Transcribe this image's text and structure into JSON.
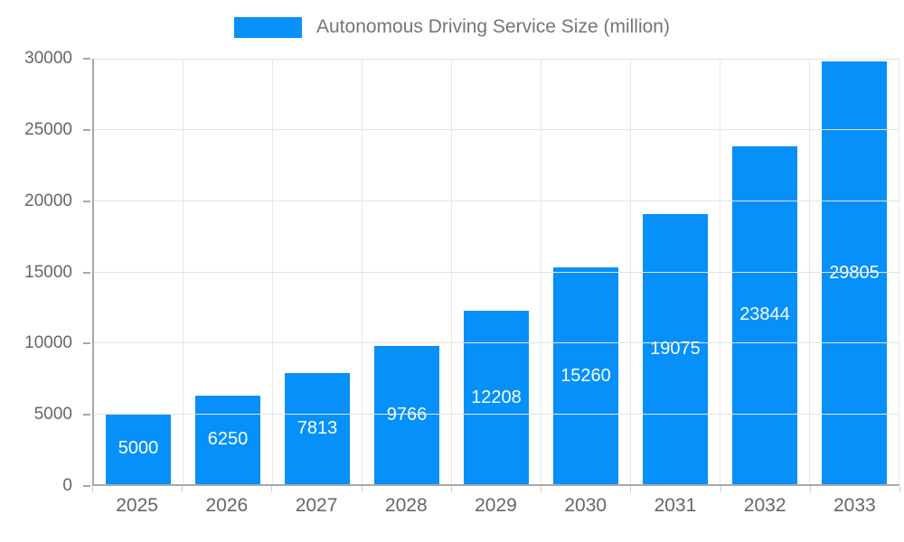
{
  "chart_data": {
    "type": "bar",
    "title": "Autonomous Driving Service Size (million)",
    "categories": [
      "2025",
      "2026",
      "2027",
      "2028",
      "2029",
      "2030",
      "2031",
      "2032",
      "2033"
    ],
    "values": [
      5000,
      6250,
      7813,
      9766,
      12208,
      15260,
      19075,
      23844,
      29805
    ],
    "xlabel": "",
    "ylabel": "",
    "ylim": [
      0,
      30000
    ],
    "yticks": [
      0,
      5000,
      10000,
      15000,
      20000,
      25000,
      30000
    ],
    "grid": true,
    "legend_position": "top",
    "bar_color": "#0590fa",
    "bar_label_color": "#ffffff",
    "axis_color": "#a8a8a8",
    "grid_color": "#e3e3e3",
    "tick_text_color": "#666666",
    "legend_text_color": "#757575"
  }
}
